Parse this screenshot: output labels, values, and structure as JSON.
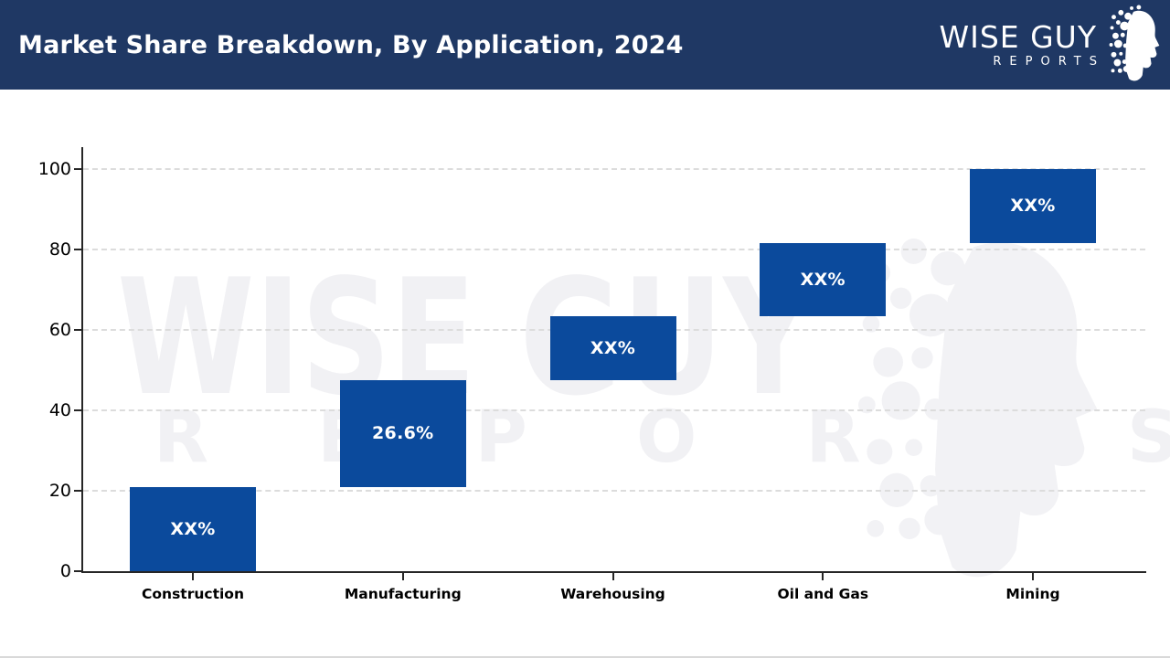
{
  "header": {
    "title": "Market Share Breakdown, By Application, 2024",
    "logo": {
      "line1": "WISE GUY",
      "line2": "REPORTS"
    }
  },
  "watermark": {
    "line1": "WISE GUY",
    "line2": "R E P O R T S"
  },
  "chart_data": {
    "type": "bar",
    "subtype": "waterfall-floating-bars",
    "title": "Market Share Breakdown, By Application, 2024",
    "categories": [
      "Construction",
      "Manufacturing",
      "Warehousing",
      "Oil and Gas",
      "Mining"
    ],
    "segments": [
      {
        "category": "Construction",
        "start": 0,
        "end": 21,
        "label": "XX%"
      },
      {
        "category": "Manufacturing",
        "start": 21,
        "end": 47.6,
        "label": "26.6%"
      },
      {
        "category": "Warehousing",
        "start": 47.6,
        "end": 63.4,
        "label": "XX%"
      },
      {
        "category": "Oil and Gas",
        "start": 63.4,
        "end": 81.6,
        "label": "XX%"
      },
      {
        "category": "Mining",
        "start": 81.6,
        "end": 100,
        "label": "XX%"
      }
    ],
    "xlabel": "",
    "ylabel": "",
    "ylim": [
      0,
      100
    ],
    "yticks": [
      0,
      20,
      40,
      60,
      80,
      100
    ],
    "grid": "horizontal-dashed",
    "legend": "none",
    "bar_color": "#0b4a9c",
    "bar_label_color": "#ffffff"
  },
  "colors": {
    "header_bg": "#1f3864",
    "header_text": "#ffffff",
    "bar": "#0b4a9c",
    "axis": "#262626",
    "grid": "#dcdcdc",
    "watermark": "#f1f1f4",
    "bottom_line": "#d9d9d9"
  }
}
